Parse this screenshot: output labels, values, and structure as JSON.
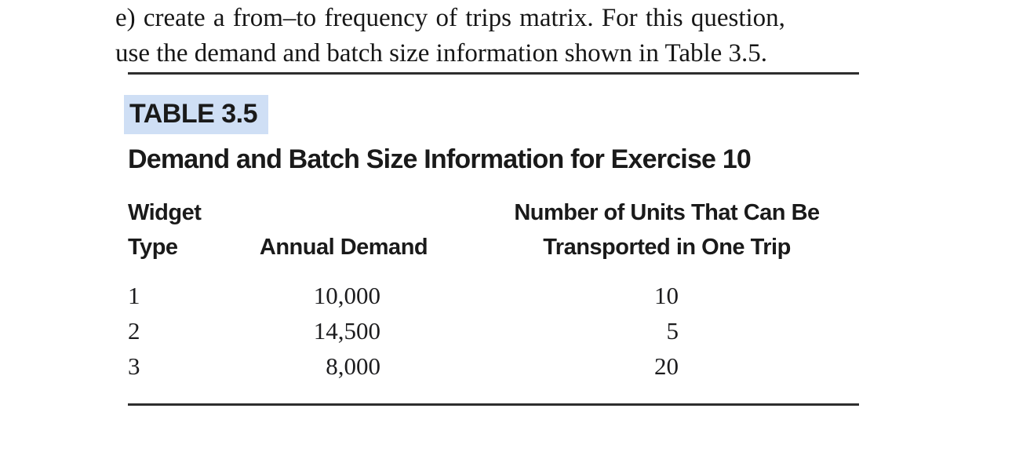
{
  "page": {
    "paragraph": {
      "line1": "e) create a from–to frequency of trips matrix. For this question,",
      "line2": "use the demand and batch size information shown in Table 3.5."
    },
    "table": {
      "label": "TABLE 3.5",
      "title": "Demand and Batch Size Information for Exercise 10",
      "highlight_color": "#cfdff5",
      "columns": [
        {
          "line1": "Widget",
          "line2": "Type"
        },
        {
          "line1": "",
          "line2": "Annual Demand"
        },
        {
          "line1": "Number of Units That Can Be",
          "line2": "Transported in One Trip"
        }
      ],
      "rows": [
        {
          "widget_type": "1",
          "annual_demand": "10,000",
          "units_per_trip": "10"
        },
        {
          "widget_type": "2",
          "annual_demand": "14,500",
          "units_per_trip": "5"
        },
        {
          "widget_type": "3",
          "annual_demand": "8,000",
          "units_per_trip": "20"
        }
      ]
    }
  }
}
